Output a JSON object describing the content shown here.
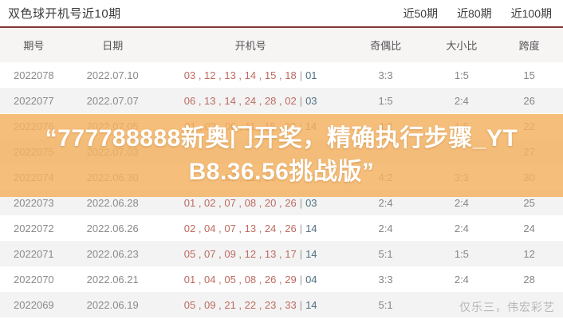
{
  "header": {
    "title": "双色球开机号近10期",
    "tabs": [
      {
        "label": "近50期"
      },
      {
        "label": "近80期"
      },
      {
        "label": "近100期"
      }
    ]
  },
  "table": {
    "columns": [
      "期号",
      "日期",
      "开机号",
      "奇偶比",
      "大小比",
      "跨度"
    ],
    "rows": [
      {
        "issue": "2022078",
        "date": "2022.07.10",
        "reds": "03 , 12 , 13 , 14 , 15 , 18",
        "blue": "01",
        "odd_even": "3:3",
        "big_small": "1:5",
        "span": "15"
      },
      {
        "issue": "2022077",
        "date": "2022.07.07",
        "reds": "06 , 13 , 14 , 24 , 28 , 02",
        "blue": "03",
        "odd_even": "1:5",
        "big_small": "2:4",
        "span": "26"
      },
      {
        "issue": "2022076",
        "date": "2022.07.05",
        "reds": "01 , 02 , 06 , 11 , 15 , 23",
        "blue": "14",
        "odd_even": "4:2",
        "big_small": "1:5",
        "span": "22"
      },
      {
        "issue": "2022075",
        "date": "2022.07.03",
        "reds": "",
        "blue": "",
        "odd_even": "",
        "big_small": "",
        "span": "27"
      },
      {
        "issue": "2022074",
        "date": "2022.06.30",
        "reds": "06 , 11 , 26",
        "blue": "",
        "odd_even": "4:2",
        "big_small": "3:3",
        "span": "30"
      },
      {
        "issue": "2022073",
        "date": "2022.06.28",
        "reds": "01 , 02 , 07 , 08 , 20 , 26",
        "blue": "03",
        "odd_even": "2:4",
        "big_small": "2:4",
        "span": "25"
      },
      {
        "issue": "2022072",
        "date": "2022.06.26",
        "reds": "02 , 04 , 07 , 13 , 24 , 26",
        "blue": "14",
        "odd_even": "2:4",
        "big_small": "2:4",
        "span": "24"
      },
      {
        "issue": "2022071",
        "date": "2022.06.23",
        "reds": "05 , 07 , 09 , 12 , 13 , 17",
        "blue": "14",
        "odd_even": "5:1",
        "big_small": "1:5",
        "span": "12"
      },
      {
        "issue": "2022070",
        "date": "2022.06.21",
        "reds": "01 , 04 , 05 , 08 , 26 , 29",
        "blue": "04",
        "odd_even": "3:3",
        "big_small": "2:4",
        "span": "28"
      },
      {
        "issue": "2022069",
        "date": "2022.06.19",
        "reds": "05 , 09 , 21 , 22 , 23 , 33",
        "blue": "14",
        "odd_even": "5:1",
        "big_small": "",
        "span": ""
      }
    ]
  },
  "overlay": {
    "line1": "“777788888新奥门开奖，精确执行步骤_YT",
    "line2": "B8.36.56挑战版”"
  },
  "watermark": "仅乐三，伟宏彩艺",
  "colors": {
    "divider_maroon": "#8a3636",
    "overlay_bg": "#f3b160",
    "red_ball_text": "#bd6a60",
    "blue_ball_text": "#50707f"
  }
}
